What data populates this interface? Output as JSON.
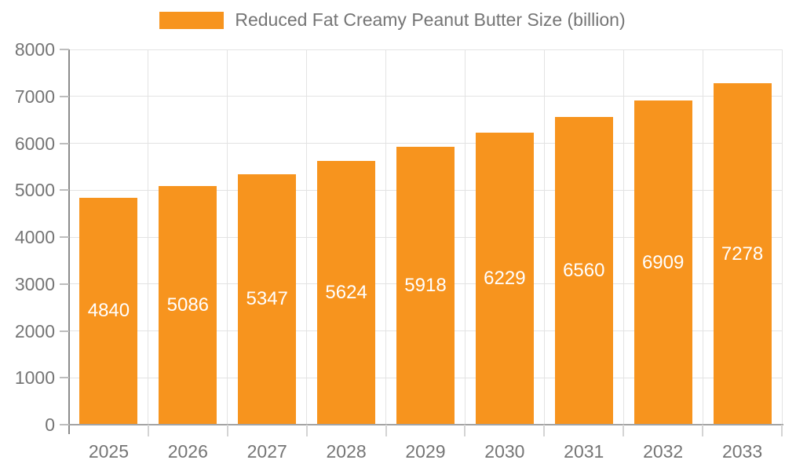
{
  "legend": {
    "label": "Reduced Fat Creamy Peanut Butter Size (billion)"
  },
  "chart_data": {
    "type": "bar",
    "title": "Reduced Fat Creamy Peanut Butter Size (billion)",
    "categories": [
      "2025",
      "2026",
      "2027",
      "2028",
      "2029",
      "2030",
      "2031",
      "2032",
      "2033"
    ],
    "values": [
      4840,
      5086,
      5347,
      5624,
      5918,
      6229,
      6560,
      6909,
      7278
    ],
    "series_name": "Reduced Fat Creamy Peanut Butter Size (billion)",
    "xlabel": "",
    "ylabel": "",
    "ylim": [
      0,
      8000
    ],
    "ytick_interval": 1000,
    "yticks": [
      0,
      1000,
      2000,
      3000,
      4000,
      5000,
      6000,
      7000,
      8000
    ],
    "grid": "on",
    "legend_position": "top-center",
    "bar_color": "#F7941E",
    "value_label_color": "#FFFFFF",
    "axis_text_color": "#757575"
  }
}
